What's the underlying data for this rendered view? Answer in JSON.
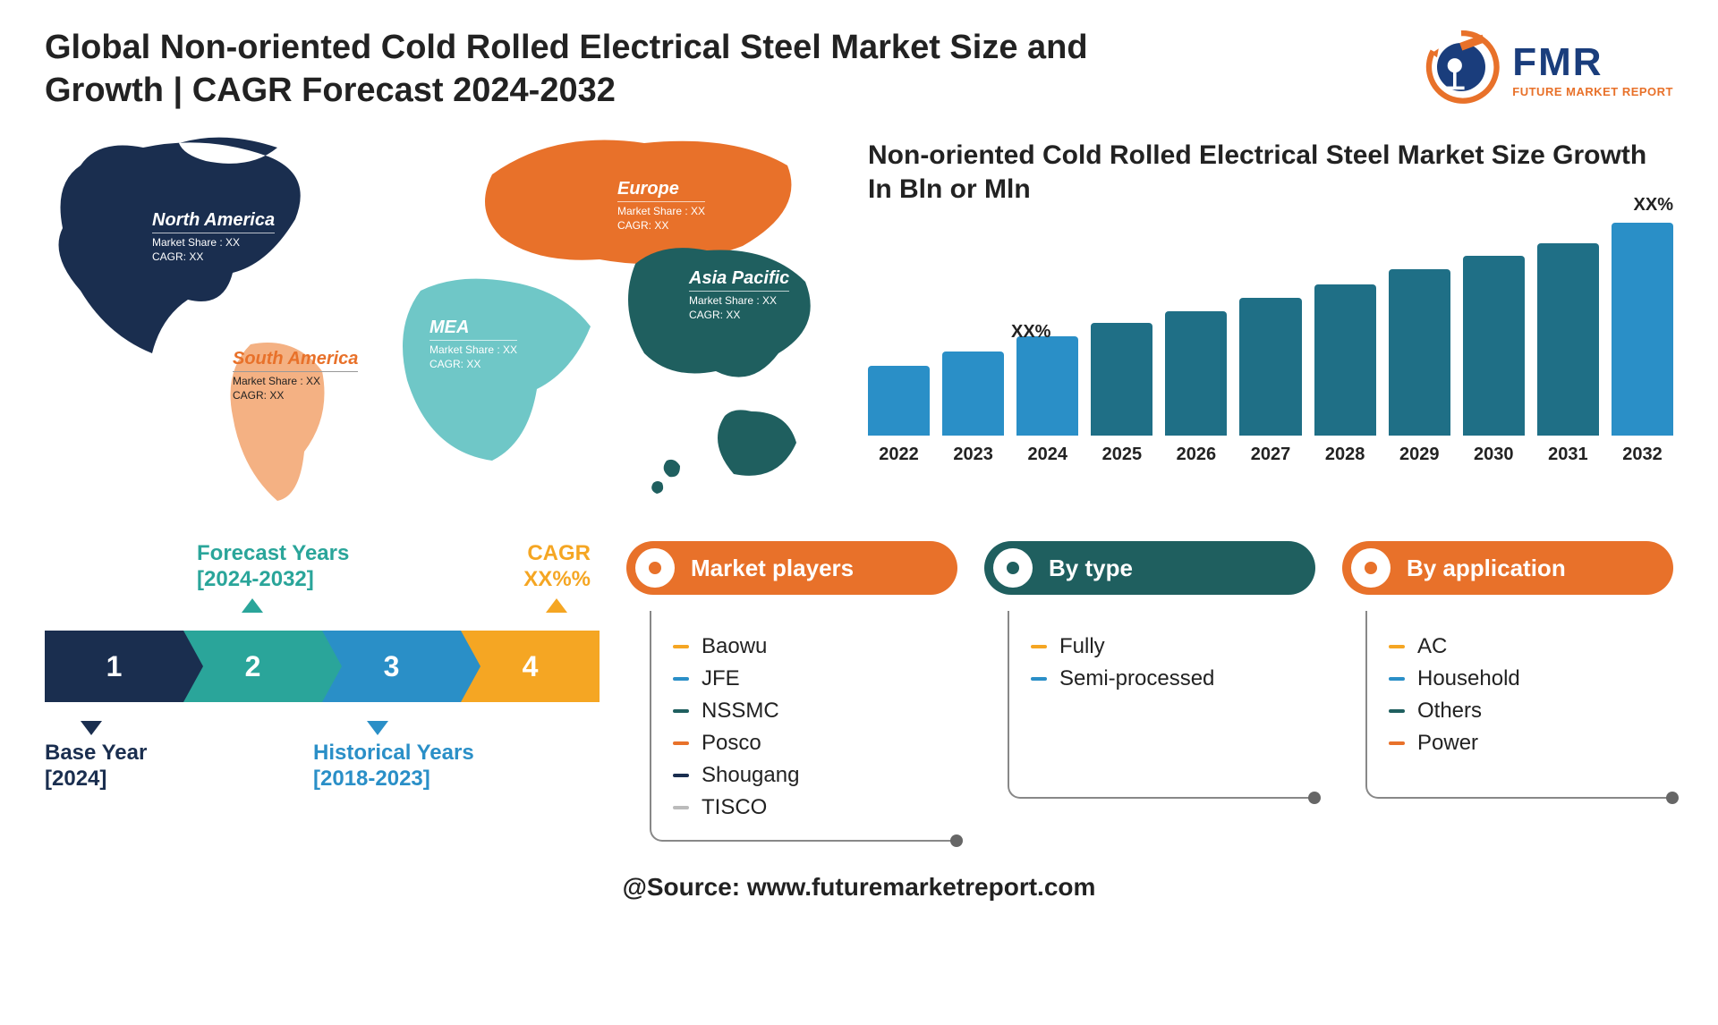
{
  "title": "Global Non-oriented Cold Rolled Electrical Steel Market Size and Growth | CAGR Forecast 2024-2032",
  "logo": {
    "fmr": "FMR",
    "sub": "FUTURE MARKET REPORT"
  },
  "map": {
    "regions": {
      "north_america": {
        "name": "North America",
        "share": "Market Share : XX",
        "cagr": "CAGR: XX",
        "color": "#1a2e4f"
      },
      "south_america": {
        "name": "South America",
        "share": "Market Share : XX",
        "cagr": "CAGR: XX",
        "color": "#f4b183"
      },
      "europe": {
        "name": "Europe",
        "share": "Market Share : XX",
        "cagr": "CAGR: XX",
        "color": "#e8712a"
      },
      "mea": {
        "name": "MEA",
        "share": "Market Share : XX",
        "cagr": "CAGR: XX",
        "color": "#6fc7c7"
      },
      "asia_pacific": {
        "name": "Asia Pacific",
        "share": "Market Share : XX",
        "cagr": "CAGR: XX",
        "color": "#1f5f5f"
      }
    }
  },
  "chart": {
    "title": "Non-oriented Cold Rolled Electrical Steel Market Size Growth In Bln or Mln",
    "type": "bar",
    "categories": [
      "2022",
      "2023",
      "2024",
      "2025",
      "2026",
      "2027",
      "2028",
      "2029",
      "2030",
      "2031",
      "2032"
    ],
    "values": [
      90,
      108,
      128,
      145,
      160,
      178,
      195,
      215,
      232,
      248,
      275
    ],
    "ylim": [
      0,
      300
    ],
    "colors": [
      "#2a8fc7",
      "#2a8fc7",
      "#2a8fc7",
      "#1f6f86",
      "#1f6f86",
      "#1f6f86",
      "#1f6f86",
      "#1f6f86",
      "#1f6f86",
      "#1f6f86",
      "#2a8fc7"
    ],
    "tag_2024": "XX%",
    "tag_2032": "XX%",
    "label_fontsize": 20,
    "title_fontsize": 30,
    "background_color": "#ffffff"
  },
  "timeline": {
    "segments": [
      {
        "num": "1",
        "color": "#1a2e4f"
      },
      {
        "num": "2",
        "color": "#2aa59a"
      },
      {
        "num": "3",
        "color": "#2a8fc7"
      },
      {
        "num": "4",
        "color": "#f5a623"
      }
    ],
    "base_year": {
      "label": "Base Year",
      "range": "[2024]",
      "color": "#1a2e4f"
    },
    "forecast": {
      "label": "Forecast Years",
      "range": "[2024-2032]",
      "color": "#2aa59a"
    },
    "historical": {
      "label": "Historical Years",
      "range": "[2018-2023]",
      "color": "#2a8fc7"
    },
    "cagr": {
      "label": "CAGR",
      "range": "XX%%",
      "color": "#f5a623"
    }
  },
  "pill_market_players": {
    "title": "Market players",
    "color": "#e8712a",
    "dot": "#e8712a",
    "items": [
      {
        "label": "Baowu",
        "tick": "#f5a623"
      },
      {
        "label": "JFE",
        "tick": "#2a8fc7"
      },
      {
        "label": "NSSMC",
        "tick": "#1f5f5f"
      },
      {
        "label": "Posco",
        "tick": "#e8712a"
      },
      {
        "label": "Shougang",
        "tick": "#1a2e4f"
      },
      {
        "label": "TISCO",
        "tick": "#bbb"
      }
    ]
  },
  "pill_by_type": {
    "title": "By type",
    "color": "#1f5f5f",
    "dot": "#1f5f5f",
    "items": [
      {
        "label": "Fully",
        "tick": "#f5a623"
      },
      {
        "label": "Semi-processed",
        "tick": "#2a8fc7"
      }
    ]
  },
  "pill_by_application": {
    "title": "By application",
    "color": "#e8712a",
    "dot": "#e8712a",
    "items": [
      {
        "label": "AC",
        "tick": "#f5a623"
      },
      {
        "label": "Household",
        "tick": "#2a8fc7"
      },
      {
        "label": "Others",
        "tick": "#1f5f5f"
      },
      {
        "label": "Power",
        "tick": "#e8712a"
      }
    ]
  },
  "source": "@Source: www.futuremarketreport.com"
}
